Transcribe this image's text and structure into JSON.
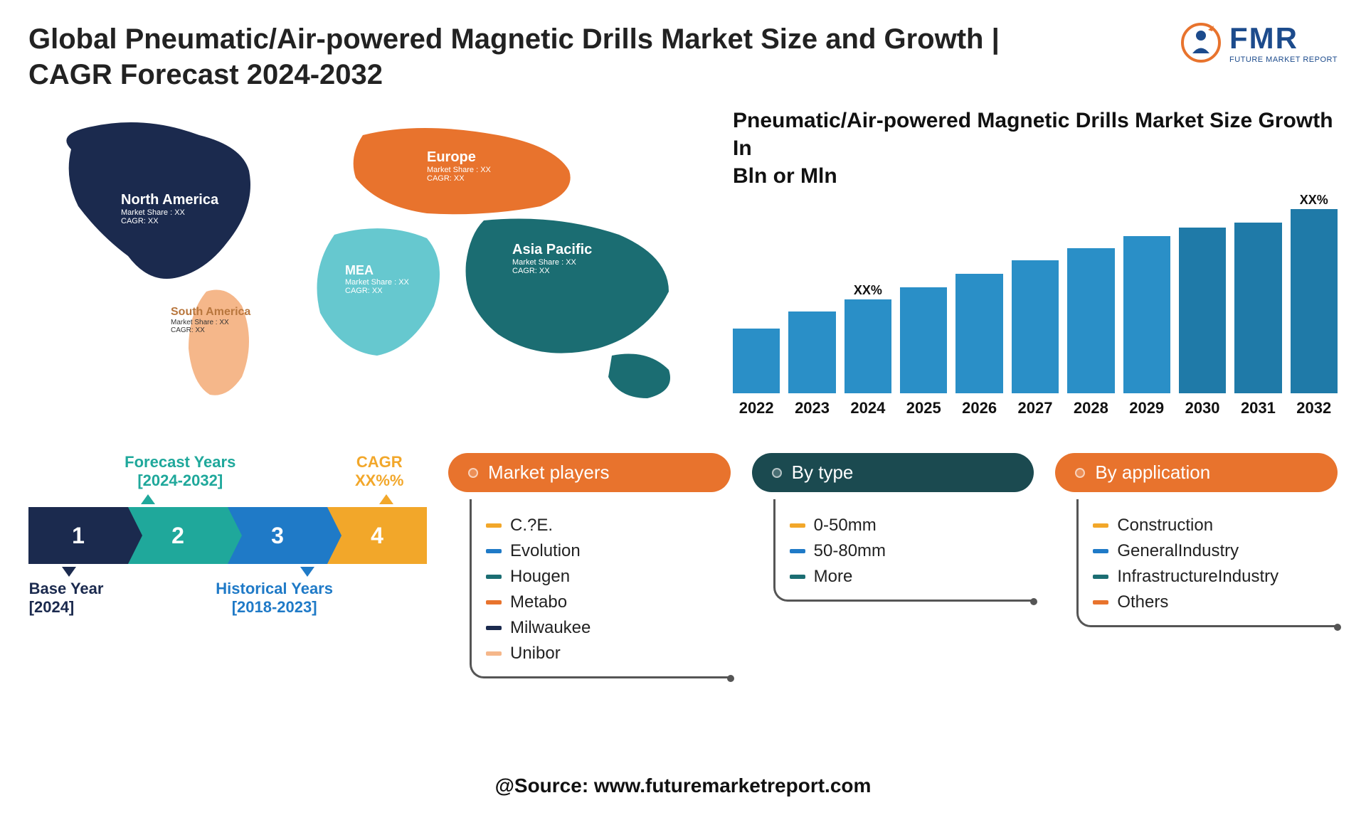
{
  "title": "Global Pneumatic/Air-powered Magnetic Drills Market Size and Growth | CAGR Forecast 2024-2032",
  "logo": {
    "text": "FMR",
    "subtitle": "FUTURE MARKET REPORT"
  },
  "map": {
    "regions": [
      {
        "name": "North America",
        "share": "Market Share : XX",
        "cagr": "CAGR: XX",
        "color": "#1b2a4e"
      },
      {
        "name": "South America",
        "share": "Market Share : XX",
        "cagr": "CAGR: XX",
        "color": "#f5b78a"
      },
      {
        "name": "Europe",
        "share": "Market Share : XX",
        "cagr": "CAGR: XX",
        "color": "#e8732d"
      },
      {
        "name": "MEA",
        "share": "Market Share : XX",
        "cagr": "CAGR: XX",
        "color": "#66c8cf"
      },
      {
        "name": "Asia Pacific",
        "share": "Market Share : XX",
        "cagr": "CAGR: XX",
        "color": "#1b6d72"
      }
    ]
  },
  "chart": {
    "title": "Pneumatic/Air-powered Magnetic Drills Market Size Growth In\nBln or Mln",
    "bar_color": "#2a8fc7",
    "bar_color_alt": "#1f7aa8",
    "years": [
      "2022",
      "2023",
      "2024",
      "2025",
      "2026",
      "2027",
      "2028",
      "2029",
      "2030",
      "2031",
      "2032"
    ],
    "heights_pct": [
      38,
      48,
      55,
      62,
      70,
      78,
      85,
      92,
      97,
      100,
      108
    ],
    "top_labels": {
      "2": "XX%",
      "10": "XX%"
    }
  },
  "timeline": {
    "forecast": {
      "label": "Forecast Years",
      "range": "[2024-2032]",
      "color": "#1fa89b"
    },
    "cagr": {
      "label": "CAGR",
      "value": "XX%%",
      "color": "#f2a72a"
    },
    "base": {
      "label": "Base Year",
      "range": "[2024]",
      "color": "#1b2a4e"
    },
    "historical": {
      "label": "Historical Years",
      "range": "[2018-2023]",
      "color": "#1f7ac7"
    },
    "segments": [
      {
        "num": "1",
        "color": "#1b2a4e"
      },
      {
        "num": "2",
        "color": "#1fa89b"
      },
      {
        "num": "3",
        "color": "#1f7ac7"
      },
      {
        "num": "4",
        "color": "#f2a72a"
      }
    ]
  },
  "pills": {
    "players": {
      "title": "Market players",
      "color": "#e8732d",
      "items": [
        "C.?E.",
        "Evolution",
        "Hougen",
        "Metabo",
        "Milwaukee",
        "Unibor"
      ],
      "tick_colors": [
        "#f2a72a",
        "#1f7ac7",
        "#1b6d72",
        "#e8732d",
        "#1b2a4e",
        "#f5b78a"
      ]
    },
    "type": {
      "title": "By type",
      "color": "#1b4a50",
      "items": [
        "0-50mm",
        "50-80mm",
        "More"
      ],
      "tick_colors": [
        "#f2a72a",
        "#1f7ac7",
        "#1b6d72"
      ]
    },
    "application": {
      "title": "By application",
      "color": "#e8732d",
      "items": [
        "Construction",
        "GeneralIndustry",
        "InfrastructureIndustry",
        "Others"
      ],
      "tick_colors": [
        "#f2a72a",
        "#1f7ac7",
        "#1b6d72",
        "#e8732d"
      ]
    }
  },
  "source": "@Source: www.futuremarketreport.com"
}
